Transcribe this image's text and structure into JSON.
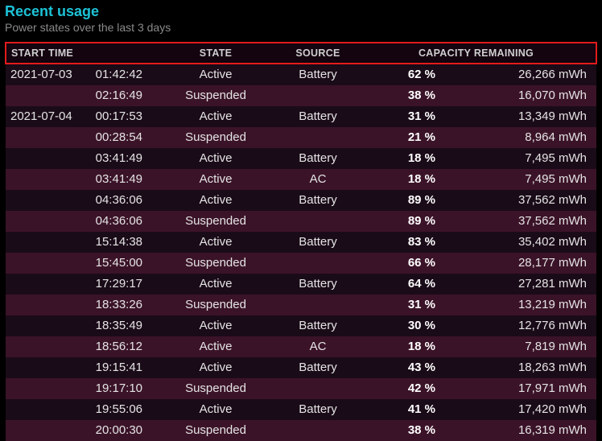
{
  "header": {
    "title": "Recent usage",
    "subtitle": "Power states over the last 3 days"
  },
  "table": {
    "columns": {
      "start_time": "START TIME",
      "state": "STATE",
      "source": "SOURCE",
      "capacity_remaining": "CAPACITY REMAINING"
    },
    "rows": [
      {
        "date": "2021-07-03",
        "time": "01:42:42",
        "state": "Active",
        "source": "Battery",
        "pct": "62 %",
        "mwh": "26,266 mWh"
      },
      {
        "date": "",
        "time": "02:16:49",
        "state": "Suspended",
        "source": "",
        "pct": "38 %",
        "mwh": "16,070 mWh"
      },
      {
        "date": "2021-07-04",
        "time": "00:17:53",
        "state": "Active",
        "source": "Battery",
        "pct": "31 %",
        "mwh": "13,349 mWh"
      },
      {
        "date": "",
        "time": "00:28:54",
        "state": "Suspended",
        "source": "",
        "pct": "21 %",
        "mwh": "8,964 mWh"
      },
      {
        "date": "",
        "time": "03:41:49",
        "state": "Active",
        "source": "Battery",
        "pct": "18 %",
        "mwh": "7,495 mWh"
      },
      {
        "date": "",
        "time": "03:41:49",
        "state": "Active",
        "source": "AC",
        "pct": "18 %",
        "mwh": "7,495 mWh"
      },
      {
        "date": "",
        "time": "04:36:06",
        "state": "Active",
        "source": "Battery",
        "pct": "89 %",
        "mwh": "37,562 mWh"
      },
      {
        "date": "",
        "time": "04:36:06",
        "state": "Suspended",
        "source": "",
        "pct": "89 %",
        "mwh": "37,562 mWh"
      },
      {
        "date": "",
        "time": "15:14:38",
        "state": "Active",
        "source": "Battery",
        "pct": "83 %",
        "mwh": "35,402 mWh"
      },
      {
        "date": "",
        "time": "15:45:00",
        "state": "Suspended",
        "source": "",
        "pct": "66 %",
        "mwh": "28,177 mWh"
      },
      {
        "date": "",
        "time": "17:29:17",
        "state": "Active",
        "source": "Battery",
        "pct": "64 %",
        "mwh": "27,281 mWh"
      },
      {
        "date": "",
        "time": "18:33:26",
        "state": "Suspended",
        "source": "",
        "pct": "31 %",
        "mwh": "13,219 mWh"
      },
      {
        "date": "",
        "time": "18:35:49",
        "state": "Active",
        "source": "Battery",
        "pct": "30 %",
        "mwh": "12,776 mWh"
      },
      {
        "date": "",
        "time": "18:56:12",
        "state": "Active",
        "source": "AC",
        "pct": "18 %",
        "mwh": "7,819 mWh"
      },
      {
        "date": "",
        "time": "19:15:41",
        "state": "Active",
        "source": "Battery",
        "pct": "43 %",
        "mwh": "18,263 mWh"
      },
      {
        "date": "",
        "time": "19:17:10",
        "state": "Suspended",
        "source": "",
        "pct": "42 %",
        "mwh": "17,971 mWh"
      },
      {
        "date": "",
        "time": "19:55:06",
        "state": "Active",
        "source": "Battery",
        "pct": "41 %",
        "mwh": "17,420 mWh"
      },
      {
        "date": "",
        "time": "20:00:30",
        "state": "Suspended",
        "source": "",
        "pct": "38 %",
        "mwh": "16,319 mWh"
      }
    ]
  },
  "colors": {
    "title": "#1dc2d6",
    "subtitle": "#8a8a8a",
    "header_border": "#e31b1b",
    "row_even_bg": "#1a0b18",
    "row_odd_bg": "#3b1328",
    "pct_text": "#ffffff",
    "text": "#e4e4e4",
    "header_bg": "#130410"
  }
}
